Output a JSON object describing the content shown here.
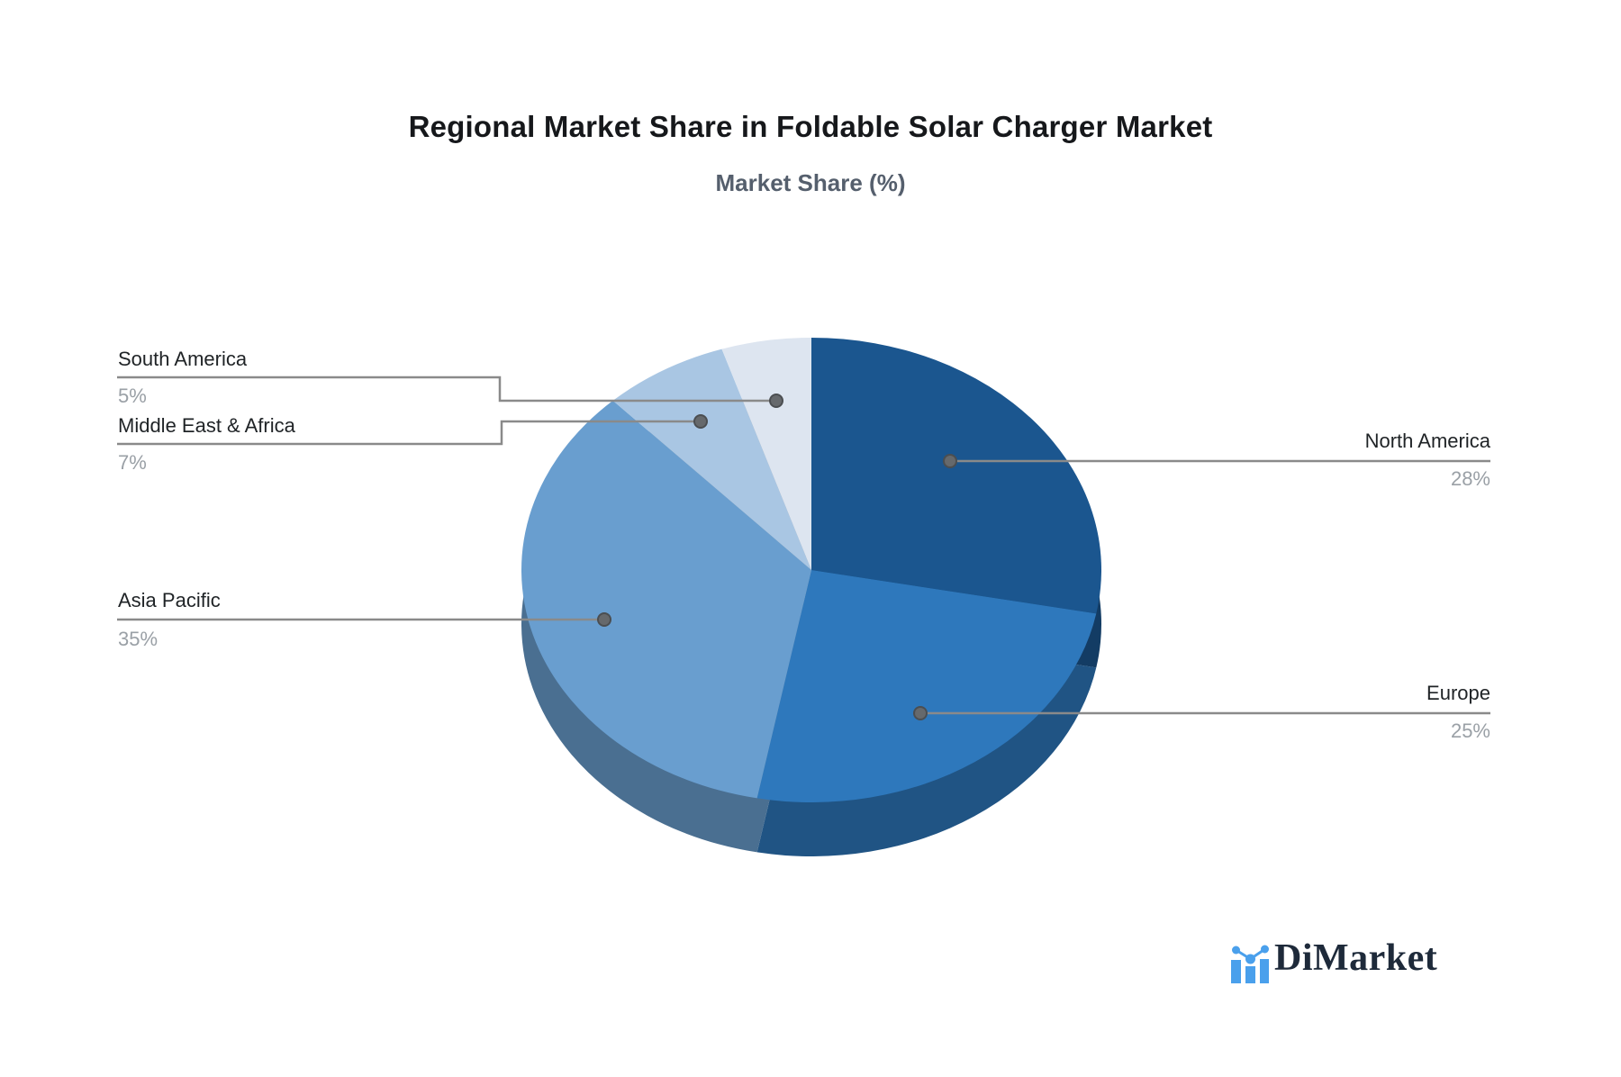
{
  "title": "Regional Market Share in Foldable Solar Charger Market",
  "subtitle": "Market Share (%)",
  "colors": {
    "background": "#FFFFFF",
    "title_text": "#16181B",
    "subtitle_text": "#555F6D",
    "label_text": "#1F2326",
    "value_text": "#9AA0A6",
    "leader_line": "#8A8A8A",
    "leader_dot": "#66696C",
    "logo_blue": "#4AA0EC",
    "logo_text": "#1E2A3A"
  },
  "chart_data": {
    "type": "pie",
    "style": "3d",
    "title": "Regional Market Share in Foldable Solar Charger Market",
    "subtitle": "Market Share (%)",
    "unit": "%",
    "start_angle": "12-oclock",
    "direction": "clockwise",
    "legend_position": "callout-labels",
    "slices": [
      {
        "label": "North America",
        "value": 28,
        "display": "28%",
        "color": "#1B568F",
        "callout_side": "right"
      },
      {
        "label": "Europe",
        "value": 25,
        "display": "25%",
        "color": "#2E78BC",
        "callout_side": "right"
      },
      {
        "label": "Asia Pacific",
        "value": 35,
        "display": "35%",
        "color": "#699ECF",
        "callout_side": "left"
      },
      {
        "label": "Middle East & Africa",
        "value": 7,
        "display": "7%",
        "color": "#A9C6E3",
        "callout_side": "left"
      },
      {
        "label": "South America",
        "value": 5,
        "display": "5%",
        "color": "#DDE5F0",
        "callout_side": "left"
      }
    ]
  },
  "watermark": {
    "brand": "DiMarket",
    "icon": "bar-line-chart-icon"
  }
}
